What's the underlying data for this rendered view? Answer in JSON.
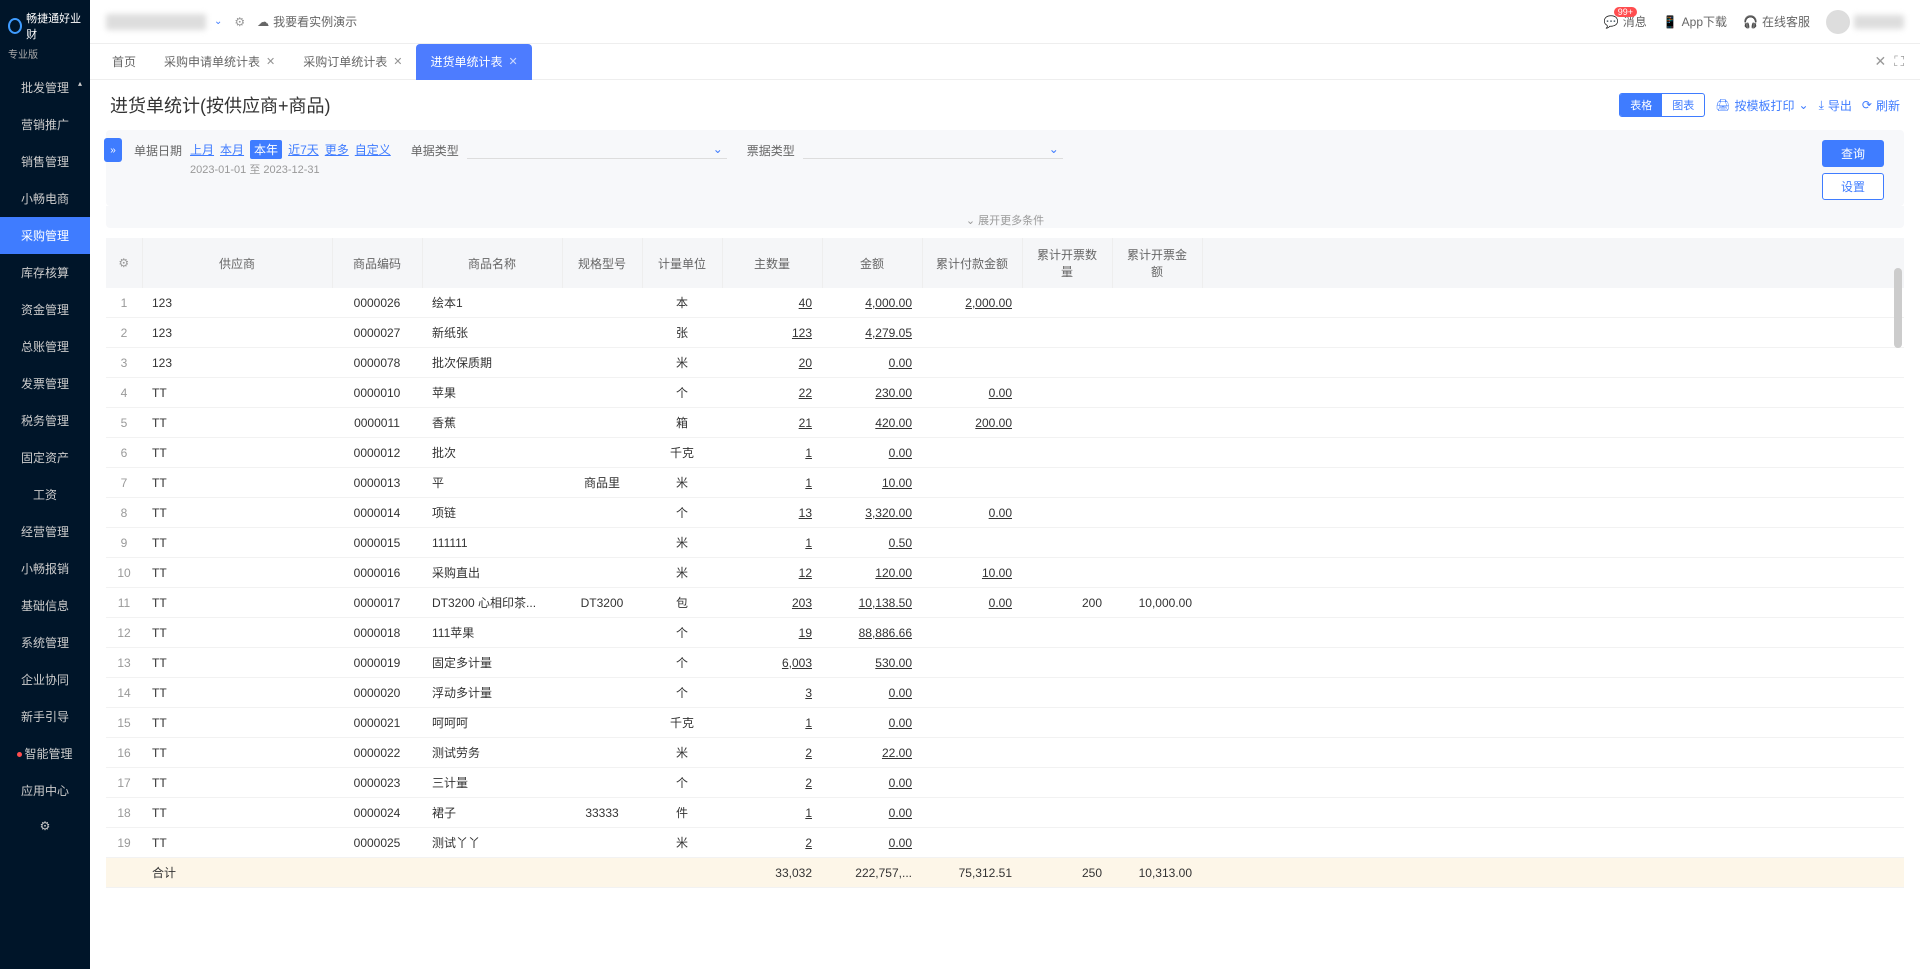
{
  "brand": {
    "name": "畅捷通好业财",
    "edition": "专业版"
  },
  "header": {
    "demo": "我要看实例演示",
    "msg": "消息",
    "msgBadge": "99+",
    "app": "App下载",
    "service": "在线客服"
  },
  "sidebar": [
    {
      "label": "批发管理",
      "expand": true
    },
    {
      "label": "营销推广"
    },
    {
      "label": "销售管理"
    },
    {
      "label": "小畅电商"
    },
    {
      "label": "采购管理",
      "active": true
    },
    {
      "label": "库存核算"
    },
    {
      "label": "资金管理"
    },
    {
      "label": "总账管理"
    },
    {
      "label": "发票管理"
    },
    {
      "label": "税务管理"
    },
    {
      "label": "固定资产"
    },
    {
      "label": "工资"
    },
    {
      "label": "经营管理"
    },
    {
      "label": "小畅报销"
    },
    {
      "label": "基础信息"
    },
    {
      "label": "系统管理"
    },
    {
      "label": "企业协同"
    },
    {
      "label": "新手引导"
    },
    {
      "label": "智能管理",
      "dot": true
    },
    {
      "label": "应用中心"
    }
  ],
  "tabs": [
    {
      "label": "首页",
      "closable": false
    },
    {
      "label": "采购申请单统计表",
      "closable": true
    },
    {
      "label": "采购订单统计表",
      "closable": true
    },
    {
      "label": "进货单统计表",
      "closable": true,
      "active": true
    }
  ],
  "page": {
    "title": "进货单统计(按供应商+商品)",
    "viewTable": "表格",
    "viewChart": "图表",
    "print": "按模板打印",
    "export": "导出",
    "refresh": "刷新"
  },
  "filter": {
    "dateLabel": "单据日期",
    "quick": [
      "上月",
      "本月",
      "本年",
      "近7天",
      "更多",
      "自定义"
    ],
    "quickActive": "本年",
    "range": "2023-01-01 至 2023-12-31",
    "type1": "单据类型",
    "type2": "票据类型",
    "query": "查询",
    "settings": "设置",
    "more": "展开更多条件"
  },
  "columns": [
    "供应商",
    "商品编码",
    "商品名称",
    "规格型号",
    "计量单位",
    "主数量",
    "金额",
    "累计付款金额",
    "累计开票数量",
    "累计开票金额"
  ],
  "rows": [
    {
      "n": 1,
      "sup": "123",
      "code": "0000026",
      "name": "绘本1",
      "spec": "",
      "unit": "本",
      "qty": "40",
      "amt": "4,000.00",
      "pay": "2,000.00",
      "invq": "",
      "inva": ""
    },
    {
      "n": 2,
      "sup": "123",
      "code": "0000027",
      "name": "新纸张",
      "spec": "",
      "unit": "张",
      "qty": "123",
      "amt": "4,279.05",
      "pay": "",
      "invq": "",
      "inva": ""
    },
    {
      "n": 3,
      "sup": "123",
      "code": "0000078",
      "name": "批次保质期",
      "spec": "",
      "unit": "米",
      "qty": "20",
      "amt": "0.00",
      "pay": "",
      "invq": "",
      "inva": ""
    },
    {
      "n": 4,
      "sup": "TT",
      "code": "0000010",
      "name": "苹果",
      "spec": "",
      "unit": "个",
      "qty": "22",
      "amt": "230.00",
      "pay": "0.00",
      "invq": "",
      "inva": ""
    },
    {
      "n": 5,
      "sup": "TT",
      "code": "0000011",
      "name": "香蕉",
      "spec": "",
      "unit": "箱",
      "qty": "21",
      "amt": "420.00",
      "pay": "200.00",
      "invq": "",
      "inva": ""
    },
    {
      "n": 6,
      "sup": "TT",
      "code": "0000012",
      "name": "批次",
      "spec": "",
      "unit": "千克",
      "qty": "1",
      "amt": "0.00",
      "pay": "",
      "invq": "",
      "inva": ""
    },
    {
      "n": 7,
      "sup": "TT",
      "code": "0000013",
      "name": "平",
      "spec": "商品里",
      "unit": "米",
      "qty": "1",
      "amt": "10.00",
      "pay": "",
      "invq": "",
      "inva": ""
    },
    {
      "n": 8,
      "sup": "TT",
      "code": "0000014",
      "name": "项链",
      "spec": "",
      "unit": "个",
      "qty": "13",
      "amt": "3,320.00",
      "pay": "0.00",
      "invq": "",
      "inva": ""
    },
    {
      "n": 9,
      "sup": "TT",
      "code": "0000015",
      "name": "111111",
      "spec": "",
      "unit": "米",
      "qty": "1",
      "amt": "0.50",
      "pay": "",
      "invq": "",
      "inva": ""
    },
    {
      "n": 10,
      "sup": "TT",
      "code": "0000016",
      "name": "采购直出",
      "spec": "",
      "unit": "米",
      "qty": "12",
      "amt": "120.00",
      "pay": "10.00",
      "invq": "",
      "inva": ""
    },
    {
      "n": 11,
      "sup": "TT",
      "code": "0000017",
      "name": "DT3200 心相印茶...",
      "spec": "DT3200",
      "unit": "包",
      "qty": "203",
      "amt": "10,138.50",
      "pay": "0.00",
      "invq": "200",
      "inva": "10,000.00"
    },
    {
      "n": 12,
      "sup": "TT",
      "code": "0000018",
      "name": "111苹果",
      "spec": "",
      "unit": "个",
      "qty": "19",
      "amt": "88,886.66",
      "pay": "",
      "invq": "",
      "inva": ""
    },
    {
      "n": 13,
      "sup": "TT",
      "code": "0000019",
      "name": "固定多计量",
      "spec": "",
      "unit": "个",
      "qty": "6,003",
      "amt": "530.00",
      "pay": "",
      "invq": "",
      "inva": ""
    },
    {
      "n": 14,
      "sup": "TT",
      "code": "0000020",
      "name": "浮动多计量",
      "spec": "",
      "unit": "个",
      "qty": "3",
      "amt": "0.00",
      "pay": "",
      "invq": "",
      "inva": ""
    },
    {
      "n": 15,
      "sup": "TT",
      "code": "0000021",
      "name": "呵呵呵",
      "spec": "",
      "unit": "千克",
      "qty": "1",
      "amt": "0.00",
      "pay": "",
      "invq": "",
      "inva": ""
    },
    {
      "n": 16,
      "sup": "TT",
      "code": "0000022",
      "name": "测试劳务",
      "spec": "",
      "unit": "米",
      "qty": "2",
      "amt": "22.00",
      "pay": "",
      "invq": "",
      "inva": ""
    },
    {
      "n": 17,
      "sup": "TT",
      "code": "0000023",
      "name": "三计量",
      "spec": "",
      "unit": "个",
      "qty": "2",
      "amt": "0.00",
      "pay": "",
      "invq": "",
      "inva": ""
    },
    {
      "n": 18,
      "sup": "TT",
      "code": "0000024",
      "name": "裙子",
      "spec": "33333",
      "unit": "件",
      "qty": "1",
      "amt": "0.00",
      "pay": "",
      "invq": "",
      "inva": ""
    },
    {
      "n": 19,
      "sup": "TT",
      "code": "0000025",
      "name": "测试丫丫",
      "spec": "",
      "unit": "米",
      "qty": "2",
      "amt": "0.00",
      "pay": "",
      "invq": "",
      "inva": ""
    }
  ],
  "total": {
    "label": "合计",
    "qty": "33,032",
    "amt": "222,757,...",
    "pay": "75,312.51",
    "invq": "250",
    "inva": "10,313.00"
  }
}
